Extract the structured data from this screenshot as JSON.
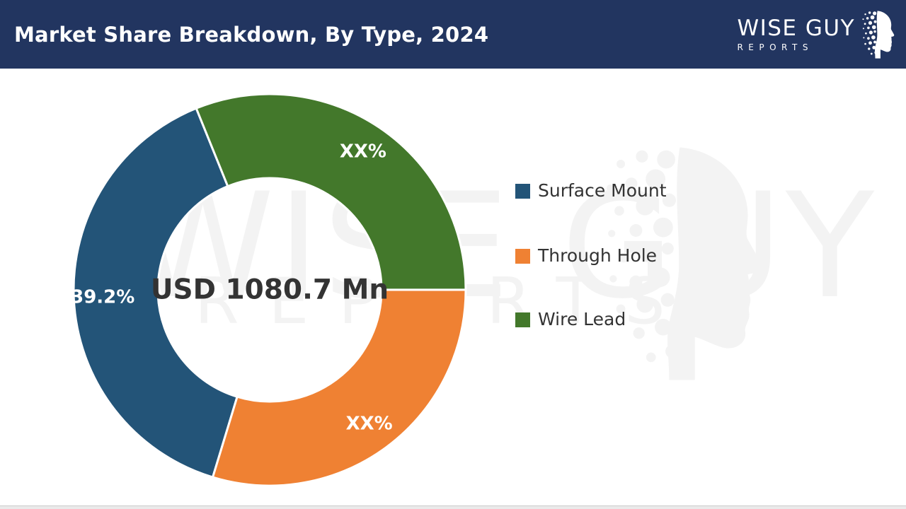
{
  "colors": {
    "header_bg": "#223560",
    "title_text": "#ffffff",
    "body_bg": "#ffffff",
    "center_text": "#333333",
    "legend_text": "#333333",
    "slice_label_text": "#ffffff",
    "watermark": "#f3f3f3",
    "bottom_bar_bg": "#eaeaea",
    "bottom_bar_border": "#cccccc"
  },
  "header": {
    "title": "Market Share Breakdown, By Type, 2024",
    "brand": {
      "line1": "WISE GUY",
      "line2": "REPORTS"
    }
  },
  "watermark": {
    "line1": "WISE GUY",
    "line2": "REPORTS"
  },
  "legend": [
    {
      "label": "Surface Mount",
      "color": "#235478"
    },
    {
      "label": "Through Hole",
      "color": "#ef8133"
    },
    {
      "label": "Wire Lead",
      "color": "#43782b"
    }
  ],
  "chart_data": {
    "type": "pie",
    "subtype": "donut",
    "title": "Market Share Breakdown, By Type, 2024",
    "center_label": "USD 1080.7 Mn",
    "start_angle_deg": 112,
    "direction": "counterclockwise",
    "inner_radius_ratio": 0.57,
    "legend_position": "right",
    "series": [
      {
        "name": "Surface Mount",
        "value_pct": 39.2,
        "display_label": "39.2%",
        "color": "#235478"
      },
      {
        "name": "Through Hole",
        "value_pct": 29.7,
        "display_label": "XX%",
        "color": "#ef8133"
      },
      {
        "name": "Wire Lead",
        "value_pct": 31.1,
        "display_label": "XX%",
        "color": "#43782b"
      }
    ]
  }
}
